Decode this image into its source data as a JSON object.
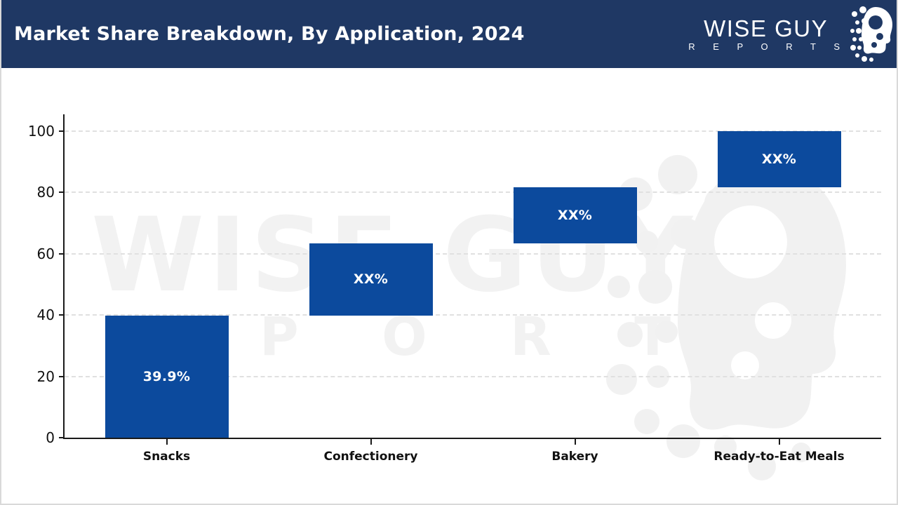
{
  "header": {
    "title": "Market Share Breakdown, By Application, 2024",
    "background_color": "#1f3864",
    "logo": {
      "line1": "WISE GUY",
      "line2": "R E P O R T S"
    }
  },
  "watermark": {
    "line1": "WISE GUY",
    "line2": "P O R T S"
  },
  "chart_data": {
    "type": "bar",
    "subtype": "waterfall-stacked-percentage",
    "title": "Market Share Breakdown, By Application, 2024",
    "categories": [
      "Snacks",
      "Confectionery",
      "Bakery",
      "Ready-to-Eat Meals"
    ],
    "segments": [
      {
        "category": "Snacks",
        "start": 0,
        "end": 39.9,
        "label": "39.9%"
      },
      {
        "category": "Confectionery",
        "start": 39.9,
        "end": 63.5,
        "label": "XX%"
      },
      {
        "category": "Bakery",
        "start": 63.5,
        "end": 81.6,
        "label": "XX%"
      },
      {
        "category": "Ready-to-Eat Meals",
        "start": 81.6,
        "end": 100,
        "label": "XX%"
      }
    ],
    "yticks": [
      0,
      20,
      40,
      60,
      80,
      100
    ],
    "ylim": [
      0,
      105
    ],
    "xlabel": "",
    "ylabel": "",
    "grid": "horizontal-dashed",
    "legend": "none",
    "bar_color": "#0c4a9d",
    "value_label_color": "#ffffff"
  }
}
